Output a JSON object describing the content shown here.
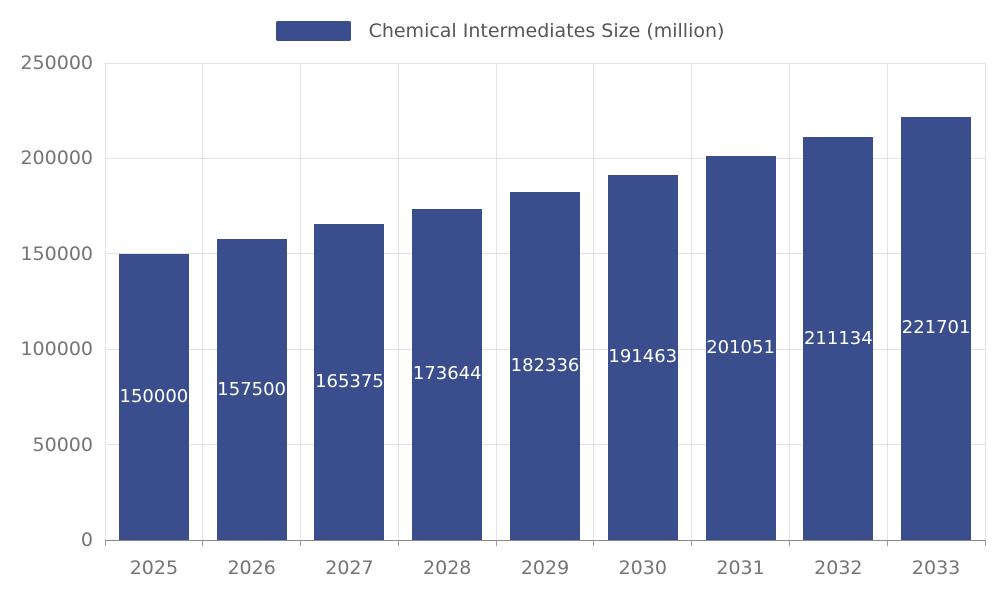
{
  "legend": {
    "label": "Chemical Intermediates Size (million)"
  },
  "chart_data": {
    "type": "bar",
    "title": "Chemical Intermediates Size (million)",
    "categories": [
      "2025",
      "2026",
      "2027",
      "2028",
      "2029",
      "2030",
      "2031",
      "2032",
      "2033"
    ],
    "values": [
      150000,
      157500,
      165375,
      173644,
      182336,
      191463,
      201051,
      211134,
      221701
    ],
    "xlabel": "",
    "ylabel": "",
    "ylim": [
      0,
      250000
    ],
    "yticks": [
      0,
      50000,
      100000,
      150000,
      200000,
      250000
    ],
    "grid": true,
    "legend_position": "top",
    "bar_color": "#3A4D8C",
    "value_label_color": "#ffffff",
    "axis_text_color": "#757575"
  }
}
